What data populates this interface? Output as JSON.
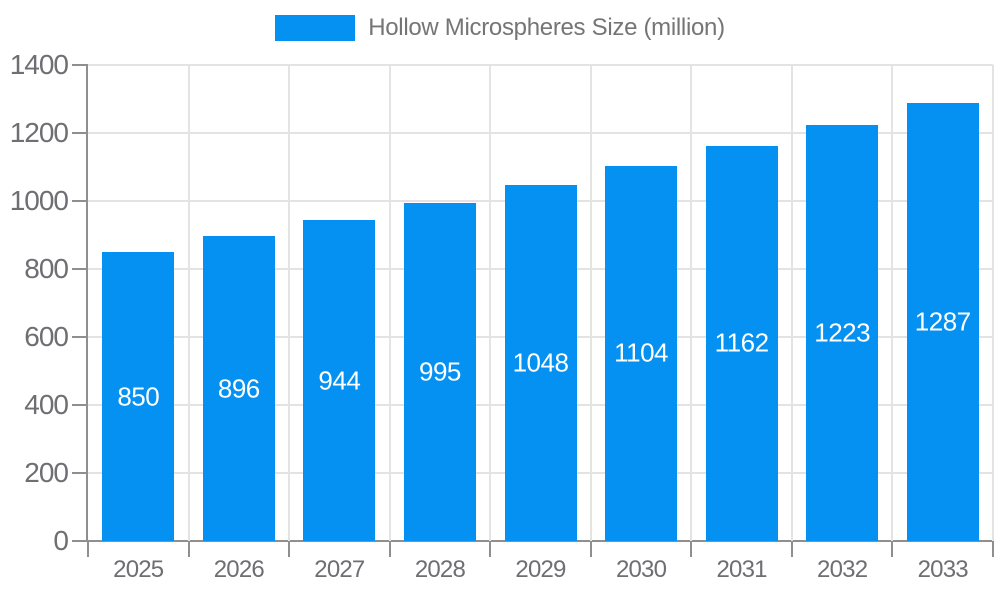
{
  "chart_data": {
    "type": "bar",
    "title": "",
    "legend": "Hollow Microspheres Size (million)",
    "legend_position": "top-center",
    "categories": [
      "2025",
      "2026",
      "2027",
      "2028",
      "2029",
      "2030",
      "2031",
      "2032",
      "2033"
    ],
    "series": [
      {
        "name": "Hollow Microspheres Size (million)",
        "values": [
          850,
          896,
          944,
          995,
          1048,
          1104,
          1162,
          1223,
          1287
        ]
      }
    ],
    "xlabel": "",
    "ylabel": "",
    "ylim": [
      0,
      1400
    ],
    "yticks": [
      0,
      200,
      400,
      600,
      800,
      1000,
      1200,
      1400
    ],
    "grid": "both",
    "value_labels": "inside-center",
    "colors": {
      "bar": "#0591F2",
      "axis_text": "#6e6e73",
      "legend_text": "#757575",
      "value_text": "#ffffff",
      "grid_line": "#e3e3e3",
      "axis_line": "#8f8f8f"
    }
  }
}
